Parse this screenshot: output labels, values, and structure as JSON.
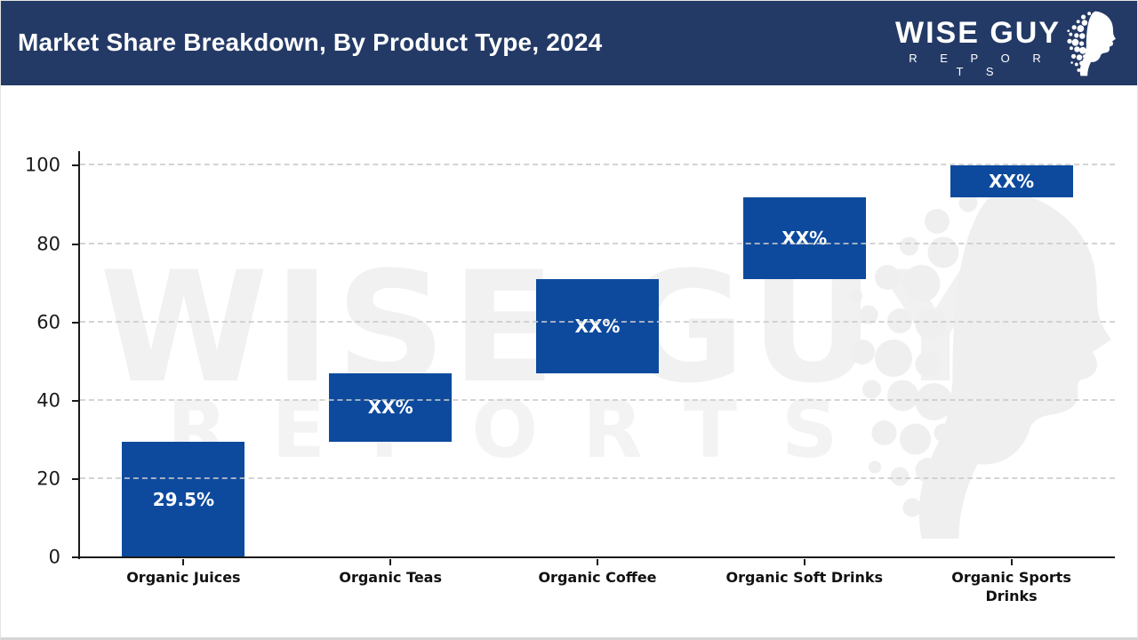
{
  "header": {
    "title": "Market Share Breakdown, By Product Type, 2024",
    "logo": {
      "line1": "WISE GUY",
      "line2": "R E P O R T S"
    }
  },
  "watermark": {
    "line1": "WISE GUY",
    "line2": "REPORTS"
  },
  "chart_data": {
    "type": "bar",
    "subtype": "waterfall",
    "title": "Market Share Breakdown, By Product Type, 2024",
    "categories": [
      "Organic Juices",
      "Organic Teas",
      "Organic Coffee",
      "Organic Soft Drinks",
      "Organic Sports Drinks"
    ],
    "segments": [
      {
        "label": "29.5%",
        "start": 0,
        "end": 29.5
      },
      {
        "label": "XX%",
        "start": 29.5,
        "end": 47
      },
      {
        "label": "XX%",
        "start": 47,
        "end": 71
      },
      {
        "label": "XX%",
        "start": 71,
        "end": 92
      },
      {
        "label": "XX%",
        "start": 92,
        "end": 100
      }
    ],
    "yticks": [
      0,
      20,
      40,
      60,
      80,
      100
    ],
    "ylim": [
      0,
      103.5
    ],
    "grid": "dashed-horizontal",
    "legend": "none",
    "xlabel": "",
    "ylabel": ""
  },
  "colors": {
    "header_bg": "#243a66",
    "bar": "#0d4a9e",
    "grid": "#c9c9c9",
    "axis": "#1a1a1a",
    "bar_label_text": "#ffffff",
    "watermark": "#f1f1f1"
  }
}
